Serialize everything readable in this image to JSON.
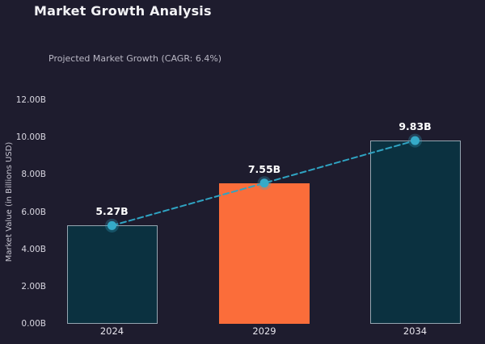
{
  "chart_data": {
    "type": "bar",
    "title": "Market Growth Analysis",
    "subtitle": "Projected Market Growth (CAGR: 6.4%)",
    "xlabel": "",
    "ylabel": "Market Value (in Billions USD)",
    "categories": [
      "2024",
      "2029",
      "2034"
    ],
    "values": [
      5.27,
      7.55,
      9.83
    ],
    "value_labels": [
      "5.27B",
      "7.55B",
      "9.83B"
    ],
    "ylim": [
      0,
      12
    ],
    "yticks": {
      "values": [
        0,
        2,
        4,
        6,
        8,
        10,
        12
      ],
      "labels": [
        "0.00B",
        "2.00B",
        "4.00B",
        "6.00B",
        "8.00B",
        "10.00B",
        "12.00B"
      ]
    },
    "grid": false,
    "legend": null,
    "trendline": {
      "style": "dashed",
      "connects": "bar tops with circular markers"
    },
    "colors": {
      "background": "#1e1c2e",
      "title_text": "#f2f2f5",
      "subtitle_text": "#b9b7c4",
      "axis_tick_text": "#d8d6e0",
      "x_tick_text": "#e6e4ec",
      "y_axis_title_text": "#c8c6d2",
      "value_label_text": "#ffffff",
      "bar_fills": [
        "#0b3140",
        "#fb6d3a",
        "#0b3140"
      ],
      "bar_edges": [
        "#95a5b1",
        "#fb6d3a",
        "#95a5b1"
      ],
      "trend_line": "#2fa3c2",
      "marker": "#35aac8",
      "marker_glow": "rgba(53,170,200,0.28)"
    }
  }
}
